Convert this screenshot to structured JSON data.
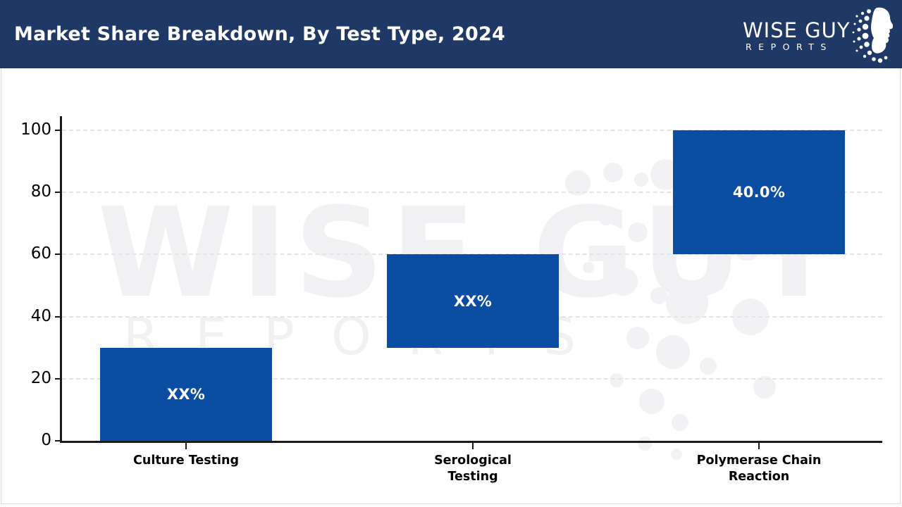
{
  "header": {
    "title": "Market Share Breakdown, By Test Type, 2024",
    "logo": {
      "brand_top": "WISE GUY",
      "brand_bottom": "REPORTS"
    }
  },
  "watermark": {
    "line1": "WISE GUY",
    "line2": "REPORTS"
  },
  "colors": {
    "header_bg": "#1f3866",
    "bar_blue": "#0b4da2",
    "watermark_gray": "#f1f1f4",
    "grid_gray": "#e4e4e7",
    "axis_black": "#1a1a1a",
    "bar_label_white": "#ffffff"
  },
  "chart_data": {
    "type": "bar",
    "subtype": "floating-segment-waterfall",
    "title": "Market Share Breakdown, By Test Type, 2024",
    "categories": [
      "Culture Testing",
      "Serological Testing",
      "Polymerase Chain Reaction"
    ],
    "category_lines": [
      [
        "Culture Testing"
      ],
      [
        "Serological",
        "Testing"
      ],
      [
        "Polymerase Chain",
        "Reaction"
      ]
    ],
    "segments": [
      {
        "category": "Culture Testing",
        "from": 0,
        "to": 30,
        "label": "XX%"
      },
      {
        "category": "Serological Testing",
        "from": 30,
        "to": 60,
        "label": "XX%"
      },
      {
        "category": "Polymerase Chain Reaction",
        "from": 60,
        "to": 100,
        "label": "40.0%"
      }
    ],
    "xlabel": "",
    "ylabel": "",
    "ylim": [
      0,
      100
    ],
    "yticks": [
      0,
      20,
      40,
      60,
      80,
      100
    ],
    "grid": "horizontal dashed, light gray, behind bars",
    "legend": "none",
    "bar_color": "#0b4da2",
    "bar_label_color": "#ffffff"
  }
}
